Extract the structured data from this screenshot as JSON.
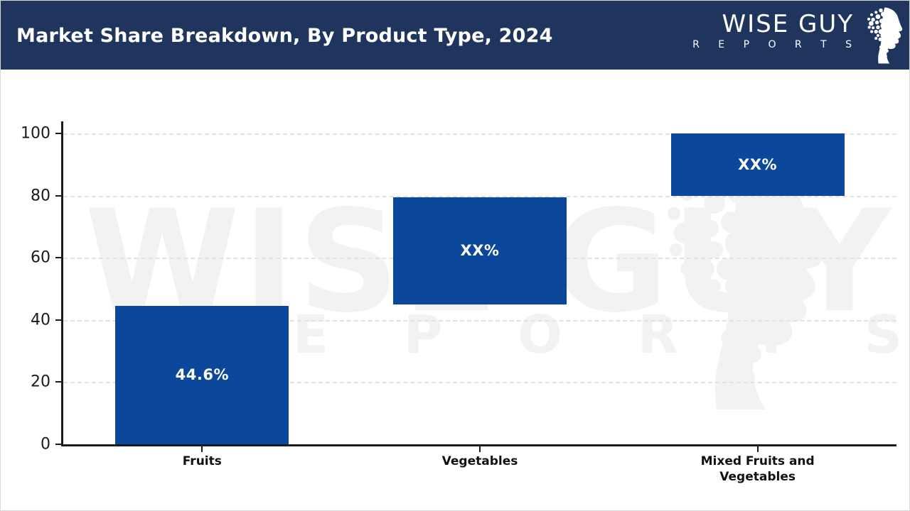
{
  "header": {
    "title": "Market Share Breakdown, By Product Type, 2024",
    "brand_line1": "WISE GUY",
    "brand_line2": "R E P O R T S"
  },
  "watermark": {
    "line1": "WISE GUY",
    "line2": "R E P O R T S"
  },
  "colors": {
    "header_bg": "#1f355e",
    "bar": "#0b479b",
    "grid": "#e2e2e2",
    "axis": "#1a1a1a",
    "watermark": "#f2f2f2",
    "bar_label": "#ffffff"
  },
  "chart_data": {
    "type": "bar",
    "variant": "stacked-waterfall",
    "title": "Market Share Breakdown, By Product Type, 2024",
    "xlabel": "",
    "ylabel": "",
    "ylim": [
      0,
      100
    ],
    "yticks": [
      0,
      20,
      40,
      60,
      80,
      100
    ],
    "grid": "dashed-horizontal",
    "legend": "none",
    "categories": [
      "Fruits",
      "Vegetables",
      "Mixed Fruits and Vegetables"
    ],
    "segments": [
      {
        "category": "Fruits",
        "label": "44.6%",
        "start": 0,
        "end": 44.6
      },
      {
        "category": "Vegetables",
        "label": "XX%",
        "start": 45,
        "end": 79.5
      },
      {
        "category": "Mixed Fruits and Vegetables",
        "label": "XX%",
        "start": 80,
        "end": 100
      }
    ],
    "bar_width_pct": 20.8
  }
}
